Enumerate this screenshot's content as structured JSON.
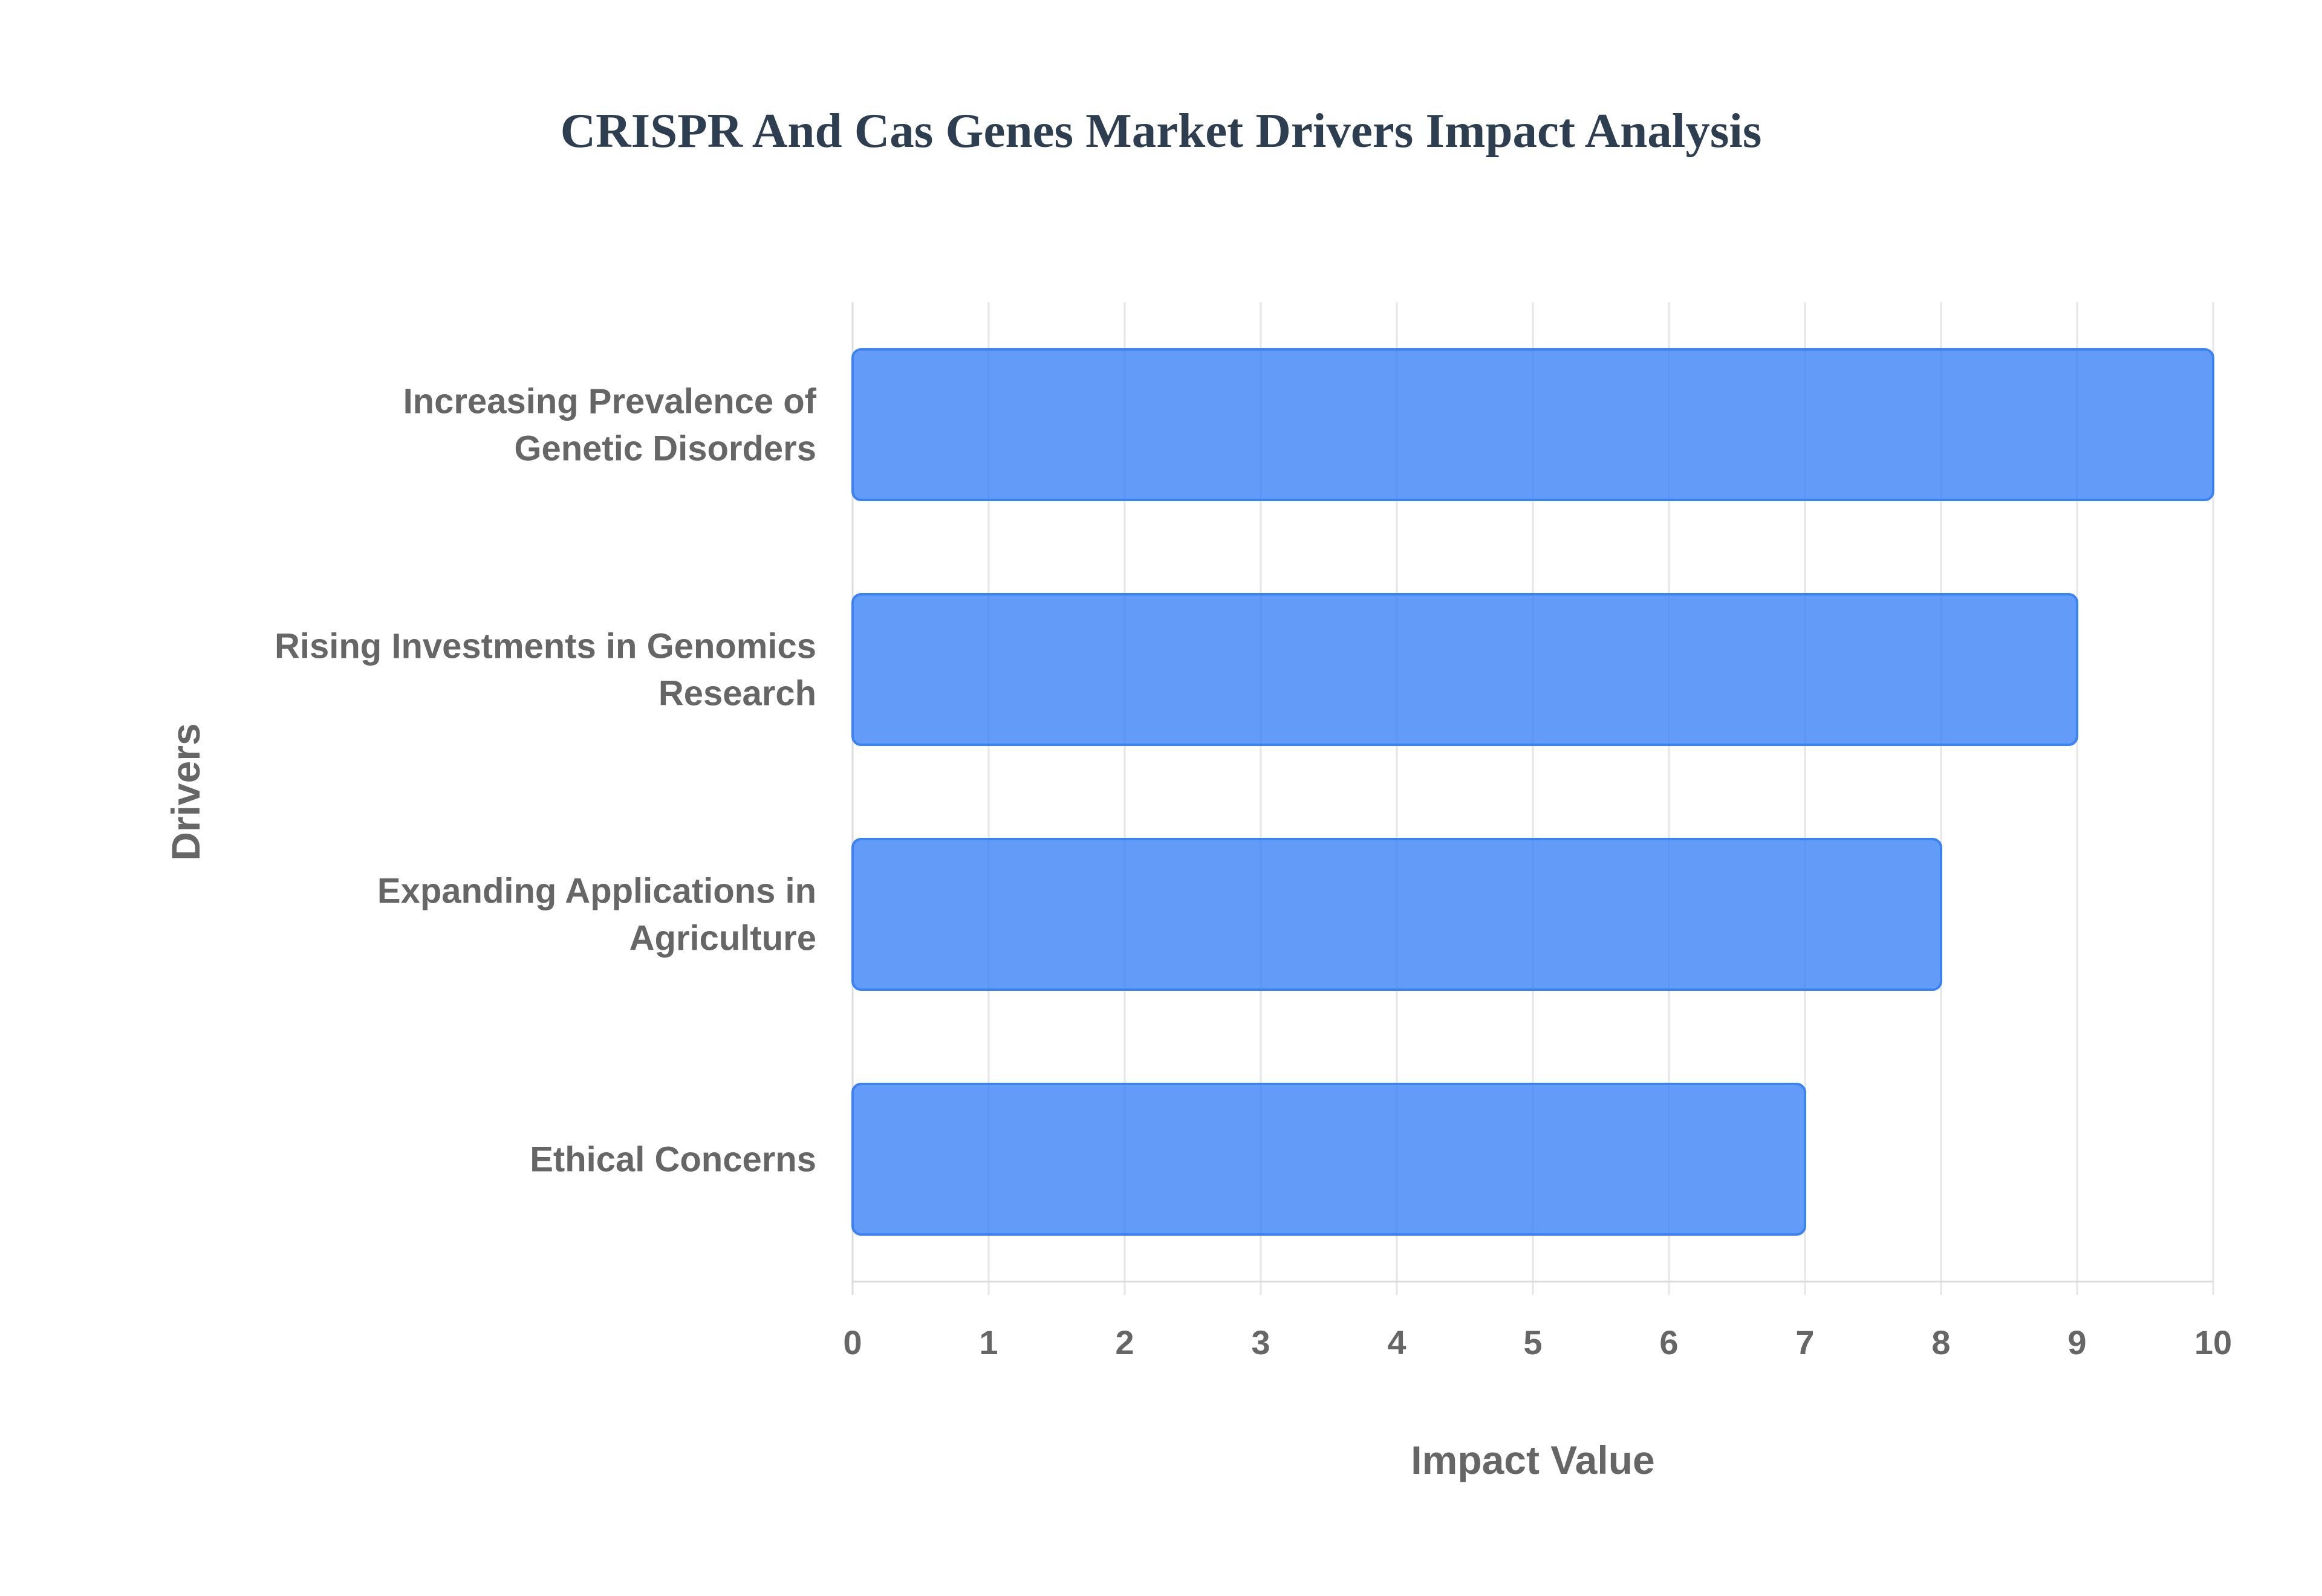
{
  "chart_data": {
    "type": "bar",
    "orientation": "horizontal",
    "title": "CRISPR And Cas Genes Market Drivers Impact Analysis",
    "xlabel": "Impact Value",
    "ylabel": "Drivers",
    "categories": [
      [
        "Increasing Prevalence of",
        "Genetic Disorders"
      ],
      [
        "Rising Investments in Genomics",
        "Research"
      ],
      [
        "Expanding Applications in",
        "Agriculture"
      ],
      [
        "Ethical Concerns"
      ]
    ],
    "values": [
      10,
      9,
      8,
      7
    ],
    "xlim": [
      0,
      10
    ],
    "xticks": [
      "0",
      "1",
      "2",
      "3",
      "4",
      "5",
      "6",
      "7",
      "8",
      "9",
      "10"
    ],
    "grid": true,
    "colors": {
      "bar_fill": "#3b82f6",
      "bar_fill_opacity": 0.8,
      "bar_stroke": "#3b82f6",
      "grid": "#e6e6e6",
      "axis": "#dcdcdc",
      "text": "#666666",
      "title": "#2c3e50"
    }
  }
}
